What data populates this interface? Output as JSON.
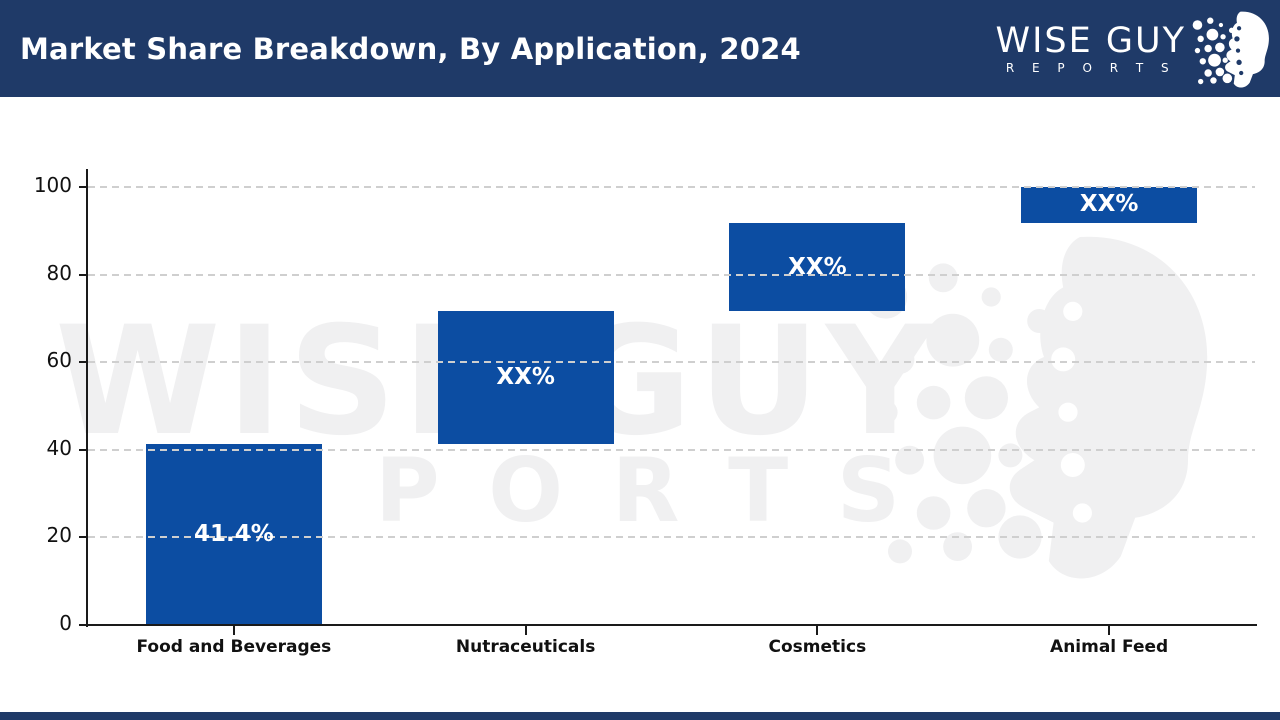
{
  "header": {
    "title": "Market Share Breakdown, By Application, 2024",
    "bg_color": "#1f3a68",
    "brand": {
      "line1": "WISE GUY",
      "line2": "R E P O R T S"
    }
  },
  "watermark": {
    "line1": "WISE GUY",
    "line2": "R E P O R T S",
    "color": "#f0f0f1"
  },
  "footer": {
    "bg_color": "#1f3a68"
  },
  "chart_data": {
    "type": "bar",
    "subtype": "waterfall",
    "title": "Market Share Breakdown, By Application, 2024",
    "categories": [
      "Food and Beverages",
      "Nutraceuticals",
      "Cosmetics",
      "Animal Feed"
    ],
    "segments": [
      {
        "category": "Food and Beverages",
        "start": 0,
        "end": 41.4,
        "value_label": "41.4%"
      },
      {
        "category": "Nutraceuticals",
        "start": 41.4,
        "end": 71.6,
        "value_label": "XX%"
      },
      {
        "category": "Cosmetics",
        "start": 71.6,
        "end": 91.8,
        "value_label": "XX%"
      },
      {
        "category": "Animal Feed",
        "start": 91.8,
        "end": 100,
        "value_label": "XX%"
      }
    ],
    "xlabel": "",
    "ylabel": "",
    "yticks": [
      0,
      20,
      40,
      60,
      80,
      100
    ],
    "ylim": [
      0,
      104
    ],
    "grid": "horizontal-dashed",
    "legend": "none",
    "bar_color": "#0c4da2",
    "label_color": "#ffffff",
    "axis_color": "#1a1a1a",
    "grid_color": "#cfcfcf"
  }
}
